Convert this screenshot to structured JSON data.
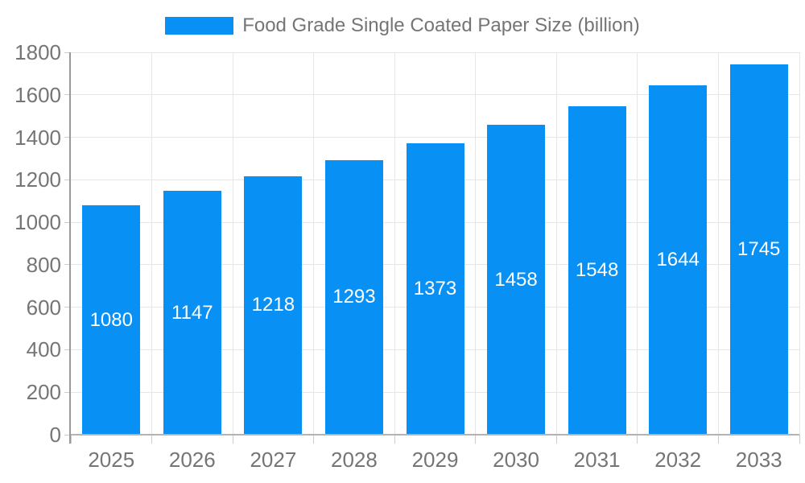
{
  "chart_data": {
    "type": "bar",
    "title": "Food Grade Single Coated Paper Size (billion)",
    "legend_label": "Food Grade Single Coated Paper Size (billion)",
    "legend_position": "top",
    "categories": [
      "2025",
      "2026",
      "2027",
      "2028",
      "2029",
      "2030",
      "2031",
      "2032",
      "2033"
    ],
    "series": [
      {
        "name": "Food Grade Single Coated Paper Size (billion)",
        "values": [
          1080,
          1147,
          1218,
          1293,
          1373,
          1458,
          1548,
          1644,
          1745
        ]
      }
    ],
    "xlabel": "",
    "ylabel": "",
    "ylim": [
      0,
      1800
    ],
    "ytick_step": 200,
    "ytick_labels": [
      "0",
      "200",
      "400",
      "600",
      "800",
      "1000",
      "1200",
      "1400",
      "1600",
      "1800"
    ],
    "grid": true,
    "bar_labels_shown": true,
    "colors": {
      "bar": "#0990f5",
      "bar_label": "#ffffff",
      "axis_text": "#757575",
      "gridline": "#e6e6e6",
      "tick": "#cccccc",
      "y_axis_line": "#999999",
      "x_axis_line": "#b3b3b3",
      "background": "#ffffff"
    }
  }
}
